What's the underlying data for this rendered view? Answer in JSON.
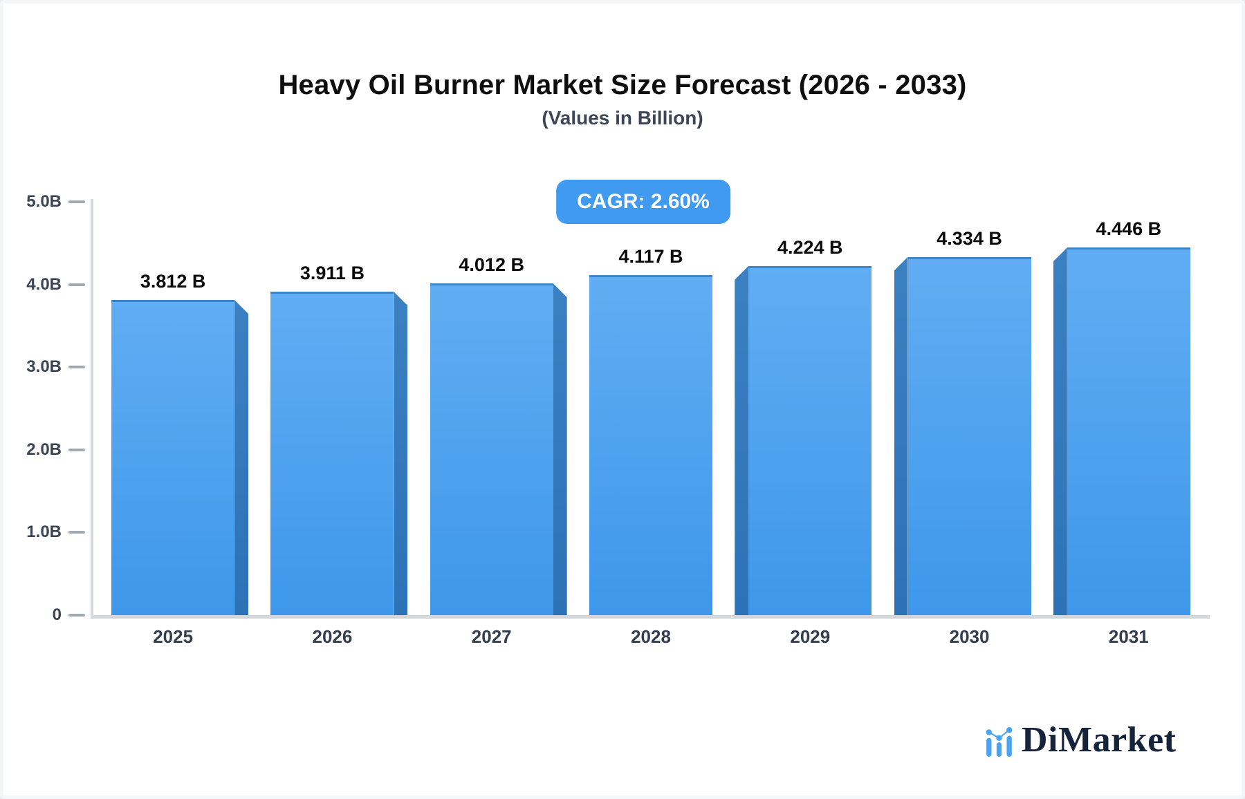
{
  "header": {
    "note": ""
  },
  "chart_data": {
    "type": "bar",
    "title": "Heavy Oil Burner Market Size Forecast (2026 - 2033)",
    "subtitle": "(Values in Billion)",
    "badge": "CAGR: 2.60%",
    "categories": [
      "2025",
      "2026",
      "2027",
      "2028",
      "2029",
      "2030",
      "2031"
    ],
    "values": [
      3.812,
      3.911,
      4.012,
      4.117,
      4.224,
      4.334,
      4.446
    ],
    "value_labels": [
      "3.812 B",
      "3.911 B",
      "4.012 B",
      "4.117 B",
      "4.224 B",
      "4.334 B",
      "4.446 B"
    ],
    "xlabel": "",
    "ylabel": "",
    "ylim": [
      0,
      5
    ],
    "y_ticks": [
      {
        "value": 0,
        "label": "0"
      },
      {
        "value": 1,
        "label": "1.0B"
      },
      {
        "value": 2,
        "label": "2.0B"
      },
      {
        "value": 3,
        "label": "3.0B"
      },
      {
        "value": 4,
        "label": "4.0B"
      },
      {
        "value": 5,
        "label": "5.0B"
      }
    ],
    "grid": false,
    "legend": false,
    "bar_style": "3d-bevel-toward-center"
  },
  "branding": {
    "logo_text": "DiMarket",
    "logo_icon": "bar-line-chart-icon"
  },
  "colors": {
    "title": "#0e0e0e",
    "subtitle": "#3d4654",
    "badge_bg": "#3f9af0",
    "badge_text": "#ffffff",
    "bar_top": "#61adf3",
    "bar_bottom": "#3e97ea",
    "bar_edge": "#3e86c8",
    "bar_side": "#2d72b6",
    "bar_side_top": "#3b80c1",
    "axis_line": "#d4d7dc",
    "tick_dash": "#a3a9b3",
    "tick_label": "#3c4554",
    "x_label": "#333d4e",
    "value_label": "#0a0a0a",
    "logo_text": "#16233c",
    "logo_blue": "#4aa2f2"
  }
}
